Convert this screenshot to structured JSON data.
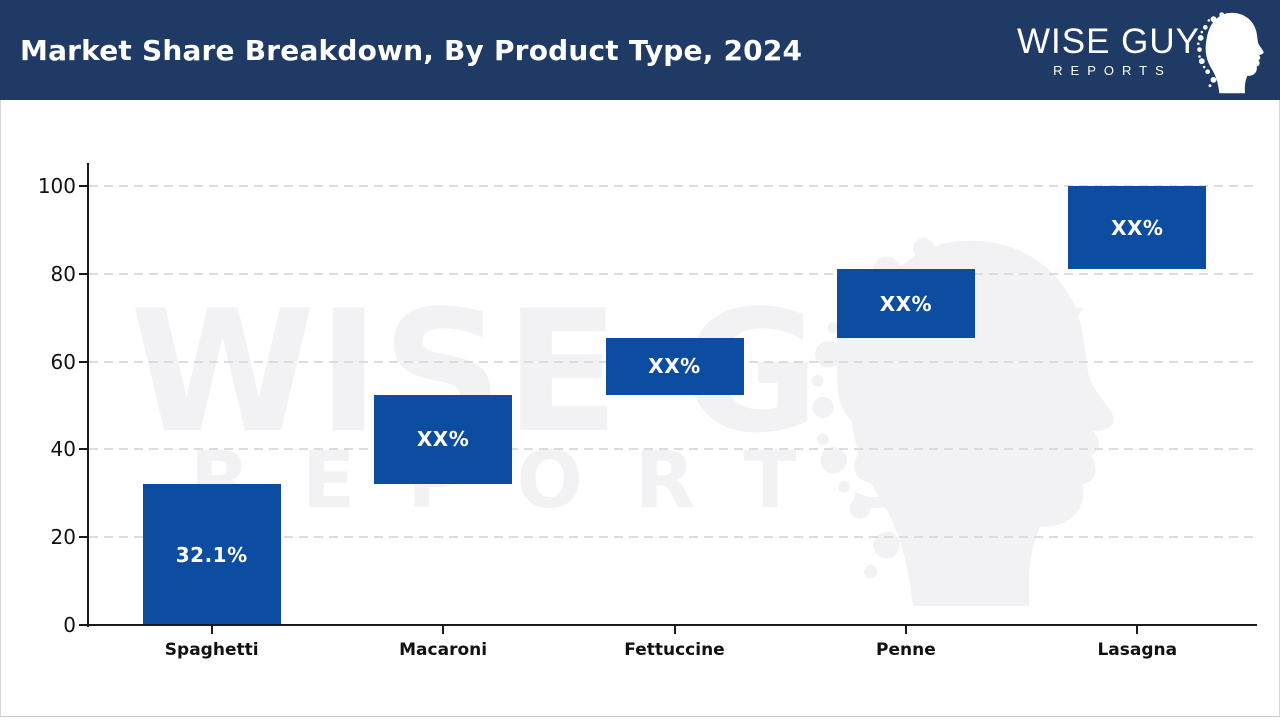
{
  "header": {
    "title": "Market Share Breakdown, By Product Type, 2024",
    "logo": {
      "line1": "WISE GUY",
      "line2": "REPORTS"
    }
  },
  "watermark": {
    "line1": "WISE GUY",
    "line2": "REPORTS"
  },
  "chart_data": {
    "type": "bar",
    "subtype": "waterfall-floating-bars",
    "title": "Market Share Breakdown, By Product Type, 2024",
    "categories": [
      "Spaghetti",
      "Macaroni",
      "Fettuccine",
      "Penne",
      "Lasagna"
    ],
    "segments": [
      [
        0,
        32.1
      ],
      [
        32.1,
        52.5
      ],
      [
        52.5,
        65.3
      ],
      [
        65.3,
        81
      ],
      [
        81,
        100
      ]
    ],
    "bar_labels": [
      "32.1%",
      "XX%",
      "XX%",
      "XX%",
      "XX%"
    ],
    "yticks": [
      0,
      20,
      40,
      60,
      80,
      100
    ],
    "ylim": [
      0,
      105
    ],
    "xlabel": "",
    "ylabel": "",
    "grid": "horizontal-dashed",
    "legend": "none",
    "bar_color": "#0d4da1",
    "bar_label_color": "#ffffff"
  },
  "colors": {
    "header_bg": "#1f3a64",
    "bar": "#0d4da1",
    "grid": "#dcdcdc",
    "axis": "#1a1a1a",
    "watermark": "#f2f2f4"
  }
}
